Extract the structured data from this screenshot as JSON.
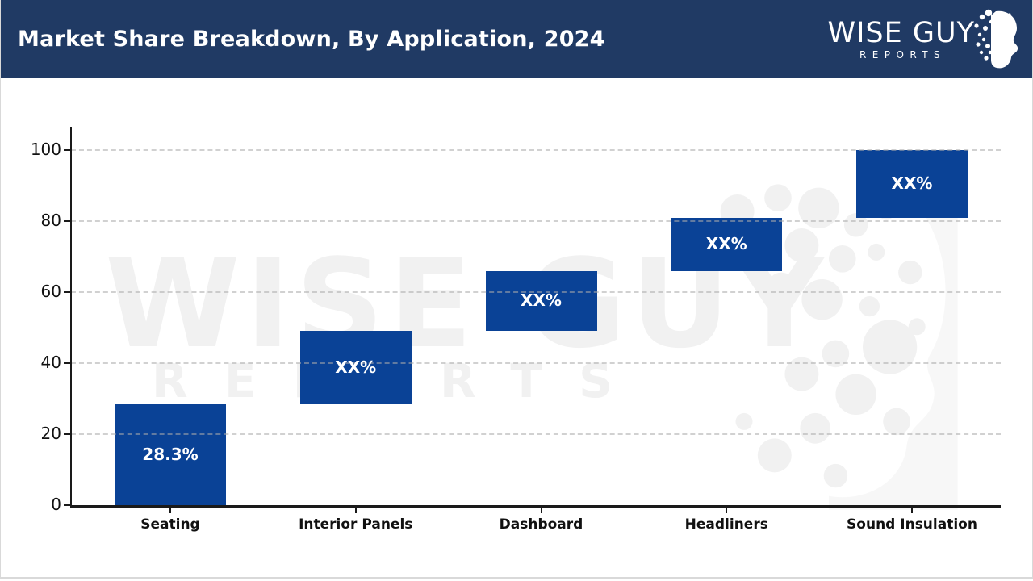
{
  "header": {
    "title": "Market Share Breakdown, By Application, 2024",
    "logo": {
      "line1": "WISE GUY",
      "line2": "REPORTS"
    }
  },
  "watermark": {
    "line1": "WISE GUY",
    "line2": "REPORTS"
  },
  "chart_data": {
    "type": "bar",
    "subtype": "waterfall",
    "title": "Market Share Breakdown, By Application, 2024",
    "xlabel": "",
    "ylabel": "",
    "categories": [
      "Seating",
      "Interior Panels",
      "Dashboard",
      "Headliners",
      "Sound Insulation"
    ],
    "segments": [
      {
        "category": "Seating",
        "start": 0,
        "end": 28.3,
        "label": "28.3%"
      },
      {
        "category": "Interior Panels",
        "start": 28.3,
        "end": 49,
        "label": "XX%"
      },
      {
        "category": "Dashboard",
        "start": 49,
        "end": 66,
        "label": "XX%"
      },
      {
        "category": "Headliners",
        "start": 66,
        "end": 81,
        "label": "XX%"
      },
      {
        "category": "Sound Insulation",
        "start": 81,
        "end": 100,
        "label": "XX%"
      }
    ],
    "ylim": [
      0,
      100
    ],
    "yticks": [
      0,
      20,
      40,
      60,
      80,
      100
    ],
    "grid": "horizontal-dashed",
    "legend": "none",
    "bar_color": "#0a4296",
    "bar_label_color": "#ffffff"
  },
  "colors": {
    "header_bg": "#203a64",
    "page_bg": "#ffffff",
    "axis": "#1a1a1a",
    "grid": "#acacac",
    "watermark": "#f1f1f1"
  }
}
